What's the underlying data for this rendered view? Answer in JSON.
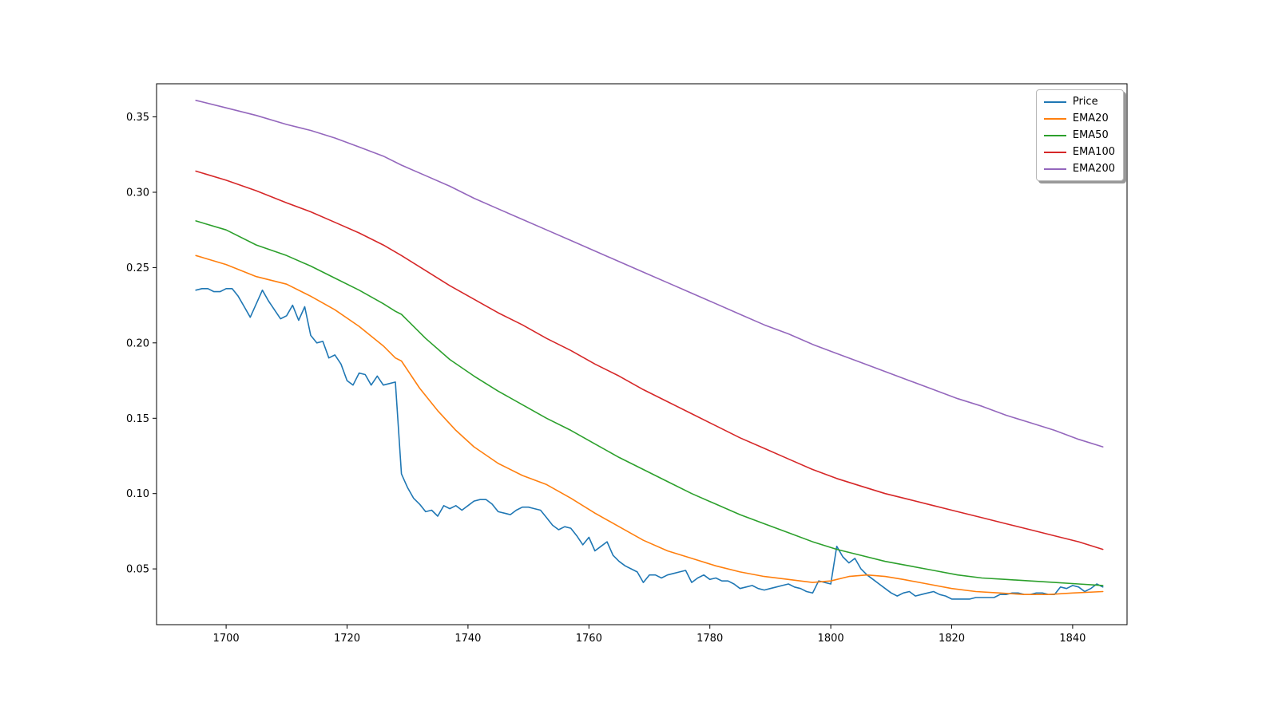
{
  "chart_data": {
    "type": "line",
    "title": "",
    "xlabel": "",
    "ylabel": "",
    "grid": false,
    "xlim": [
      1688.5,
      1849
    ],
    "ylim": [
      0.013,
      0.372
    ],
    "x_ticks": [
      1700,
      1720,
      1740,
      1760,
      1780,
      1800,
      1820,
      1840
    ],
    "y_ticks": [
      0.05,
      0.1,
      0.15,
      0.2,
      0.25,
      0.3,
      0.35
    ],
    "legend": {
      "position": "upper right",
      "entries": [
        "Price",
        "EMA20",
        "EMA50",
        "EMA100",
        "EMA200"
      ]
    },
    "series": [
      {
        "name": "Price",
        "color": "#1f77b4",
        "x_start": 1695,
        "x_step": 1,
        "y": [
          0.235,
          0.236,
          0.236,
          0.234,
          0.234,
          0.236,
          0.236,
          0.231,
          0.224,
          0.217,
          0.226,
          0.235,
          0.228,
          0.222,
          0.216,
          0.218,
          0.225,
          0.215,
          0.224,
          0.205,
          0.2,
          0.201,
          0.19,
          0.192,
          0.186,
          0.175,
          0.172,
          0.18,
          0.179,
          0.172,
          0.178,
          0.172,
          0.173,
          0.174,
          0.113,
          0.104,
          0.097,
          0.093,
          0.088,
          0.089,
          0.085,
          0.092,
          0.09,
          0.092,
          0.089,
          0.092,
          0.095,
          0.096,
          0.096,
          0.093,
          0.088,
          0.087,
          0.086,
          0.089,
          0.091,
          0.091,
          0.09,
          0.089,
          0.084,
          0.079,
          0.076,
          0.078,
          0.077,
          0.072,
          0.066,
          0.071,
          0.062,
          0.065,
          0.068,
          0.059,
          0.055,
          0.052,
          0.05,
          0.048,
          0.041,
          0.046,
          0.046,
          0.044,
          0.046,
          0.047,
          0.048,
          0.049,
          0.041,
          0.044,
          0.046,
          0.043,
          0.044,
          0.042,
          0.042,
          0.04,
          0.037,
          0.038,
          0.039,
          0.037,
          0.036,
          0.037,
          0.038,
          0.039,
          0.04,
          0.038,
          0.037,
          0.035,
          0.034,
          0.042,
          0.041,
          0.04,
          0.065,
          0.058,
          0.054,
          0.057,
          0.05,
          0.046,
          0.043,
          0.04,
          0.037,
          0.034,
          0.032,
          0.034,
          0.035,
          0.032,
          0.033,
          0.034,
          0.035,
          0.033,
          0.032,
          0.03,
          0.03,
          0.03,
          0.03,
          0.031,
          0.031,
          0.031,
          0.031,
          0.033,
          0.033,
          0.034,
          0.034,
          0.033,
          0.033,
          0.034,
          0.034,
          0.033,
          0.033,
          0.038,
          0.037,
          0.039,
          0.038,
          0.035,
          0.037,
          0.04,
          0.038
        ]
      },
      {
        "name": "EMA20",
        "color": "#ff7f0e",
        "points": [
          [
            1695,
            0.258
          ],
          [
            1700,
            0.252
          ],
          [
            1705,
            0.244
          ],
          [
            1710,
            0.239
          ],
          [
            1714,
            0.231
          ],
          [
            1718,
            0.222
          ],
          [
            1722,
            0.211
          ],
          [
            1726,
            0.198
          ],
          [
            1728,
            0.19
          ],
          [
            1729,
            0.188
          ],
          [
            1732,
            0.17
          ],
          [
            1735,
            0.155
          ],
          [
            1738,
            0.142
          ],
          [
            1741,
            0.131
          ],
          [
            1745,
            0.12
          ],
          [
            1749,
            0.112
          ],
          [
            1753,
            0.106
          ],
          [
            1757,
            0.097
          ],
          [
            1761,
            0.087
          ],
          [
            1765,
            0.078
          ],
          [
            1769,
            0.069
          ],
          [
            1773,
            0.062
          ],
          [
            1777,
            0.057
          ],
          [
            1781,
            0.052
          ],
          [
            1785,
            0.048
          ],
          [
            1789,
            0.045
          ],
          [
            1793,
            0.043
          ],
          [
            1797,
            0.041
          ],
          [
            1800,
            0.042
          ],
          [
            1803,
            0.045
          ],
          [
            1806,
            0.046
          ],
          [
            1809,
            0.045
          ],
          [
            1812,
            0.043
          ],
          [
            1816,
            0.04
          ],
          [
            1820,
            0.037
          ],
          [
            1824,
            0.035
          ],
          [
            1828,
            0.034
          ],
          [
            1832,
            0.033
          ],
          [
            1836,
            0.033
          ],
          [
            1840,
            0.034
          ],
          [
            1845,
            0.035
          ]
        ]
      },
      {
        "name": "EMA50",
        "color": "#2ca02c",
        "points": [
          [
            1695,
            0.281
          ],
          [
            1700,
            0.275
          ],
          [
            1705,
            0.265
          ],
          [
            1710,
            0.258
          ],
          [
            1714,
            0.251
          ],
          [
            1718,
            0.243
          ],
          [
            1722,
            0.235
          ],
          [
            1726,
            0.226
          ],
          [
            1728,
            0.221
          ],
          [
            1729,
            0.219
          ],
          [
            1733,
            0.203
          ],
          [
            1737,
            0.189
          ],
          [
            1741,
            0.178
          ],
          [
            1745,
            0.168
          ],
          [
            1749,
            0.159
          ],
          [
            1753,
            0.15
          ],
          [
            1757,
            0.142
          ],
          [
            1761,
            0.133
          ],
          [
            1765,
            0.124
          ],
          [
            1769,
            0.116
          ],
          [
            1773,
            0.108
          ],
          [
            1777,
            0.1
          ],
          [
            1781,
            0.093
          ],
          [
            1785,
            0.086
          ],
          [
            1789,
            0.08
          ],
          [
            1793,
            0.074
          ],
          [
            1797,
            0.068
          ],
          [
            1801,
            0.063
          ],
          [
            1805,
            0.059
          ],
          [
            1809,
            0.055
          ],
          [
            1813,
            0.052
          ],
          [
            1817,
            0.049
          ],
          [
            1821,
            0.046
          ],
          [
            1825,
            0.044
          ],
          [
            1829,
            0.043
          ],
          [
            1833,
            0.042
          ],
          [
            1837,
            0.041
          ],
          [
            1841,
            0.04
          ],
          [
            1845,
            0.039
          ]
        ]
      },
      {
        "name": "EMA100",
        "color": "#d62728",
        "points": [
          [
            1695,
            0.314
          ],
          [
            1700,
            0.308
          ],
          [
            1705,
            0.301
          ],
          [
            1710,
            0.293
          ],
          [
            1714,
            0.287
          ],
          [
            1718,
            0.28
          ],
          [
            1722,
            0.273
          ],
          [
            1726,
            0.265
          ],
          [
            1729,
            0.258
          ],
          [
            1733,
            0.248
          ],
          [
            1737,
            0.238
          ],
          [
            1741,
            0.229
          ],
          [
            1745,
            0.22
          ],
          [
            1749,
            0.212
          ],
          [
            1753,
            0.203
          ],
          [
            1757,
            0.195
          ],
          [
            1761,
            0.186
          ],
          [
            1765,
            0.178
          ],
          [
            1769,
            0.169
          ],
          [
            1773,
            0.161
          ],
          [
            1777,
            0.153
          ],
          [
            1781,
            0.145
          ],
          [
            1785,
            0.137
          ],
          [
            1789,
            0.13
          ],
          [
            1793,
            0.123
          ],
          [
            1797,
            0.116
          ],
          [
            1801,
            0.11
          ],
          [
            1805,
            0.105
          ],
          [
            1809,
            0.1
          ],
          [
            1813,
            0.096
          ],
          [
            1817,
            0.092
          ],
          [
            1821,
            0.088
          ],
          [
            1825,
            0.084
          ],
          [
            1829,
            0.08
          ],
          [
            1833,
            0.076
          ],
          [
            1837,
            0.072
          ],
          [
            1841,
            0.068
          ],
          [
            1845,
            0.063
          ]
        ]
      },
      {
        "name": "EMA200",
        "color": "#9467bd",
        "points": [
          [
            1695,
            0.361
          ],
          [
            1700,
            0.356
          ],
          [
            1705,
            0.351
          ],
          [
            1710,
            0.345
          ],
          [
            1714,
            0.341
          ],
          [
            1718,
            0.336
          ],
          [
            1722,
            0.33
          ],
          [
            1726,
            0.324
          ],
          [
            1729,
            0.318
          ],
          [
            1733,
            0.311
          ],
          [
            1737,
            0.304
          ],
          [
            1741,
            0.296
          ],
          [
            1745,
            0.289
          ],
          [
            1749,
            0.282
          ],
          [
            1753,
            0.275
          ],
          [
            1757,
            0.268
          ],
          [
            1761,
            0.261
          ],
          [
            1765,
            0.254
          ],
          [
            1769,
            0.247
          ],
          [
            1773,
            0.24
          ],
          [
            1777,
            0.233
          ],
          [
            1781,
            0.226
          ],
          [
            1785,
            0.219
          ],
          [
            1789,
            0.212
          ],
          [
            1793,
            0.206
          ],
          [
            1797,
            0.199
          ],
          [
            1801,
            0.193
          ],
          [
            1805,
            0.187
          ],
          [
            1809,
            0.181
          ],
          [
            1813,
            0.175
          ],
          [
            1817,
            0.169
          ],
          [
            1821,
            0.163
          ],
          [
            1825,
            0.158
          ],
          [
            1829,
            0.152
          ],
          [
            1833,
            0.147
          ],
          [
            1837,
            0.142
          ],
          [
            1841,
            0.136
          ],
          [
            1845,
            0.131
          ]
        ]
      }
    ]
  }
}
